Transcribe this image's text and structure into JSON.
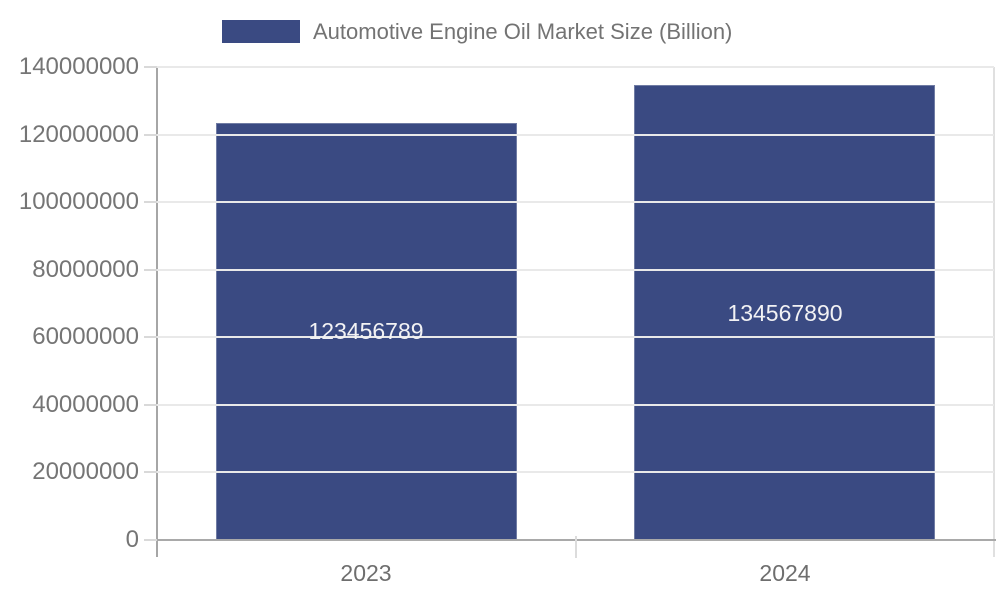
{
  "legend": {
    "label": "Automotive Engine Oil Market Size (Billion)",
    "swatch_color": "#3A4A82"
  },
  "chart_data": {
    "type": "bar",
    "title": "Automotive Engine Oil Market Size (Billion)",
    "categories": [
      "2023",
      "2024"
    ],
    "series": [
      {
        "name": "Automotive Engine Oil Market Size (Billion)",
        "values": [
          123456789,
          134567890
        ]
      }
    ],
    "data_labels": [
      "123456789",
      "134567890"
    ],
    "yticks": [
      0,
      20000000,
      40000000,
      60000000,
      80000000,
      100000000,
      120000000,
      140000000
    ],
    "ytick_labels": [
      "0",
      "20000000",
      "40000000",
      "60000000",
      "80000000",
      "100000000",
      "120000000",
      "140000000"
    ],
    "ylim": [
      0,
      140000000
    ],
    "xlabel": "",
    "ylabel": "",
    "grid": true,
    "legend_position": "top-center",
    "bar_color": "#3A4A82",
    "bar_label_color": "#f2f2f4",
    "axis_text_color": "#757575",
    "gridline_color": "#e9e9e9",
    "axis_line_color": "#a6a6a6"
  }
}
